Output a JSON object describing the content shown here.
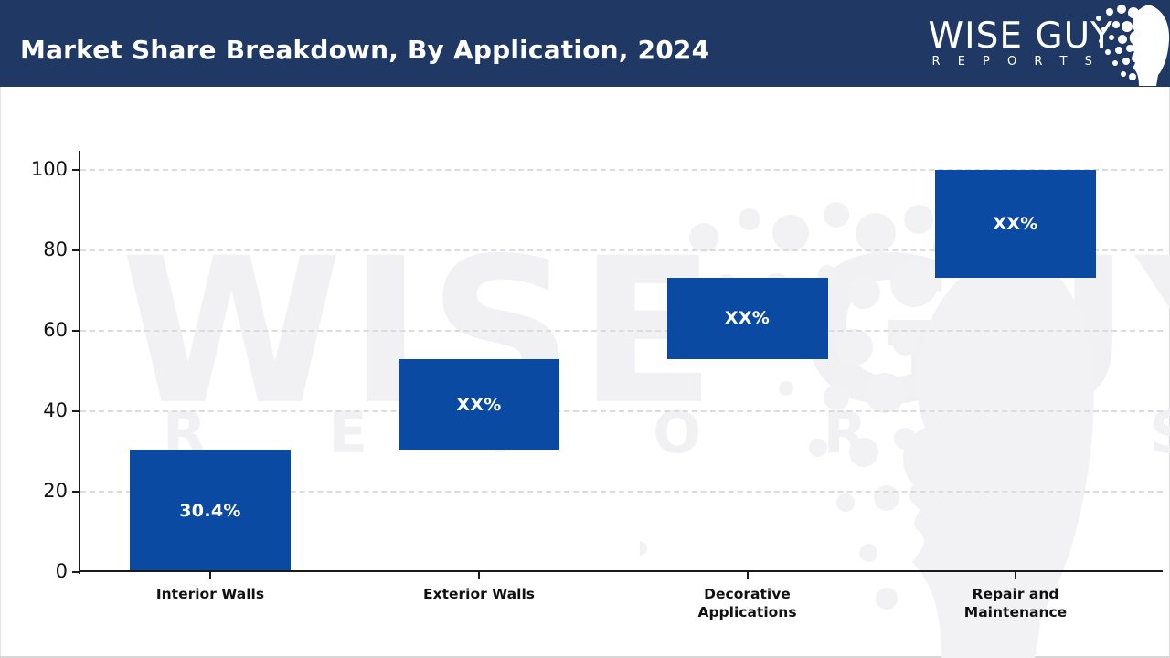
{
  "header": {
    "title": "Market Share Breakdown, By Application, 2024",
    "logo": {
      "line1": "WISE GUY",
      "line2": "R E P O R T S"
    }
  },
  "watermark": {
    "line1": "WISE GUY",
    "line2": "R E P O R T S"
  },
  "colors": {
    "header_bg": "#1f3864",
    "bar": "#0b4aa2",
    "grid": "#dcdcdc",
    "axis": "#1a1a1a",
    "watermark": "#f1f1f3",
    "bar_label_text": "#ffffff",
    "title_text": "#ffffff"
  },
  "chart_data": {
    "type": "bar",
    "subtype": "waterfall",
    "title": "Market Share Breakdown, By Application, 2024",
    "categories": [
      "Interior Walls",
      "Exterior Walls",
      "Decorative Applications",
      "Repair and Maintenance"
    ],
    "categories_display": [
      [
        "Interior Walls"
      ],
      [
        "Exterior Walls"
      ],
      [
        "Decorative",
        "Applications"
      ],
      [
        "Repair and",
        "Maintenance"
      ]
    ],
    "segments": [
      {
        "start": 0,
        "end": 30.4,
        "value": 30.4,
        "label": "30.4%"
      },
      {
        "start": 30.4,
        "end": 53.0,
        "value": 22.6,
        "label": "XX%"
      },
      {
        "start": 53.0,
        "end": 73.2,
        "value": 20.2,
        "label": "XX%"
      },
      {
        "start": 73.2,
        "end": 100.0,
        "value": 26.8,
        "label": "XX%"
      }
    ],
    "bar_labels": [
      "30.4%",
      "XX%",
      "XX%",
      "XX%"
    ],
    "xlabel": "",
    "ylabel": "",
    "yticks": [
      0,
      20,
      40,
      60,
      80,
      100
    ],
    "ylim": [
      0,
      105
    ],
    "grid": "horizontal-dashed",
    "legend": "none",
    "bar_color": "#0b4aa2"
  }
}
